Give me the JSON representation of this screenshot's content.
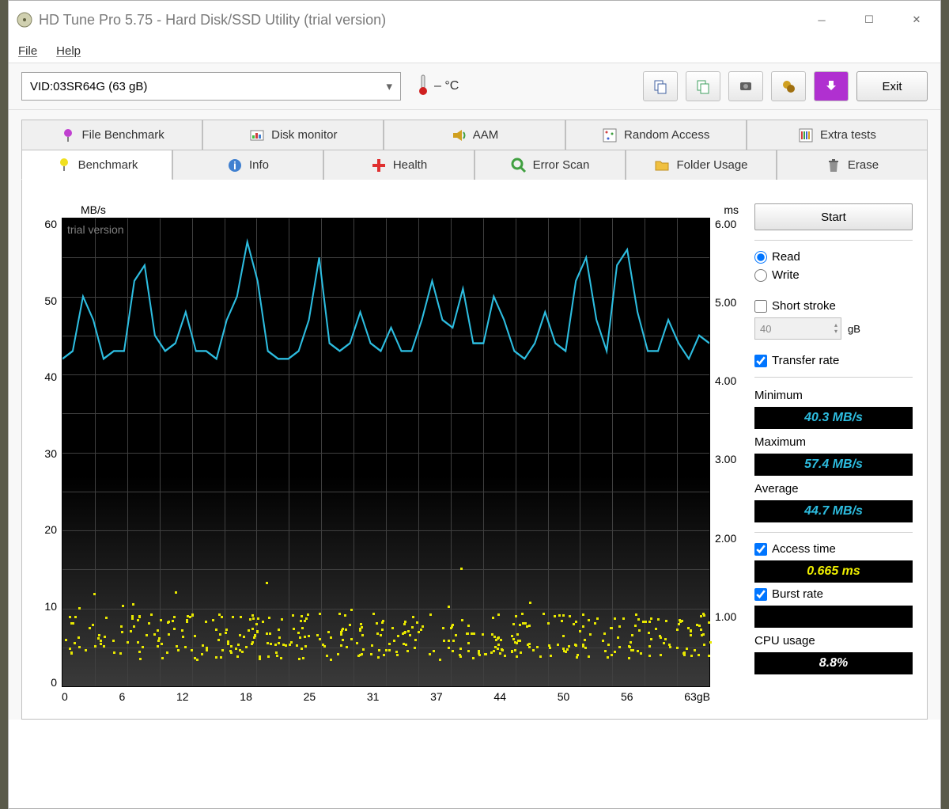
{
  "window": {
    "title": "HD Tune Pro 5.75 - Hard Disk/SSD Utility (trial version)"
  },
  "menu": {
    "file": "File",
    "help": "Help"
  },
  "toolbar": {
    "drive": "VID:03SR64G (63 gB)",
    "temp": "– °C",
    "exit": "Exit"
  },
  "tabs_row1": [
    {
      "label": "File Benchmark"
    },
    {
      "label": "Disk monitor"
    },
    {
      "label": "AAM"
    },
    {
      "label": "Random Access"
    },
    {
      "label": "Extra tests"
    }
  ],
  "tabs_row2": [
    {
      "label": "Benchmark",
      "active": true
    },
    {
      "label": "Info"
    },
    {
      "label": "Health"
    },
    {
      "label": "Error Scan"
    },
    {
      "label": "Folder Usage"
    },
    {
      "label": "Erase"
    }
  ],
  "chart": {
    "watermark": "trial version",
    "y_left_label": "MB/s",
    "y_right_label": "ms",
    "y_left_ticks": [
      "60",
      "50",
      "40",
      "30",
      "20",
      "10",
      "0"
    ],
    "y_right_ticks": [
      "6.00",
      "5.00",
      "4.00",
      "3.00",
      "2.00",
      "1.00",
      ""
    ],
    "x_ticks": [
      "0",
      "6",
      "12",
      "18",
      "25",
      "31",
      "37",
      "44",
      "50",
      "56",
      "63gB"
    ],
    "line_color": "#2dbde0",
    "scatter_color": "#e8e800",
    "bg_top": "#000000",
    "bg_bottom": "#3a3a3a",
    "grid_color": "#404040",
    "y_range": [
      0,
      60
    ],
    "transfer_points": [
      [
        0,
        42
      ],
      [
        1,
        43
      ],
      [
        2,
        50
      ],
      [
        3,
        47
      ],
      [
        4,
        42
      ],
      [
        5,
        43
      ],
      [
        6,
        43
      ],
      [
        7,
        52
      ],
      [
        8,
        54
      ],
      [
        9,
        45
      ],
      [
        10,
        43
      ],
      [
        11,
        44
      ],
      [
        12,
        48
      ],
      [
        13,
        43
      ],
      [
        14,
        43
      ],
      [
        15,
        42
      ],
      [
        16,
        47
      ],
      [
        17,
        50
      ],
      [
        18,
        57
      ],
      [
        19,
        52
      ],
      [
        20,
        43
      ],
      [
        21,
        42
      ],
      [
        22,
        42
      ],
      [
        23,
        43
      ],
      [
        24,
        47
      ],
      [
        25,
        55
      ],
      [
        26,
        44
      ],
      [
        27,
        43
      ],
      [
        28,
        44
      ],
      [
        29,
        48
      ],
      [
        30,
        44
      ],
      [
        31,
        43
      ],
      [
        32,
        46
      ],
      [
        33,
        43
      ],
      [
        34,
        43
      ],
      [
        35,
        47
      ],
      [
        36,
        52
      ],
      [
        37,
        47
      ],
      [
        38,
        46
      ],
      [
        39,
        51
      ],
      [
        40,
        44
      ],
      [
        41,
        44
      ],
      [
        42,
        50
      ],
      [
        43,
        47
      ],
      [
        44,
        43
      ],
      [
        45,
        42
      ],
      [
        46,
        44
      ],
      [
        47,
        48
      ],
      [
        48,
        44
      ],
      [
        49,
        43
      ],
      [
        50,
        52
      ],
      [
        51,
        55
      ],
      [
        52,
        47
      ],
      [
        53,
        43
      ],
      [
        54,
        54
      ],
      [
        55,
        56
      ],
      [
        56,
        48
      ],
      [
        57,
        43
      ],
      [
        58,
        43
      ],
      [
        59,
        47
      ],
      [
        60,
        44
      ],
      [
        61,
        42
      ],
      [
        62,
        45
      ],
      [
        63,
        44
      ]
    ],
    "access_y_range": [
      0,
      6
    ],
    "access_approx_band": [
      0.35,
      0.95
    ]
  },
  "side": {
    "start": "Start",
    "read": "Read",
    "write": "Write",
    "short_stroke": "Short stroke",
    "stroke_val": "40",
    "stroke_unit": "gB",
    "transfer_rate": "Transfer rate",
    "min_label": "Minimum",
    "min_val": "40.3 MB/s",
    "max_label": "Maximum",
    "max_val": "57.4 MB/s",
    "avg_label": "Average",
    "avg_val": "44.7 MB/s",
    "access_label": "Access time",
    "access_val": "0.665 ms",
    "burst_label": "Burst rate",
    "burst_val": "",
    "cpu_label": "CPU usage",
    "cpu_val": "8.8%"
  },
  "colors": {
    "stat_cyan": "#2dbde0",
    "stat_yellow": "#f0f000",
    "stat_white": "#ffffff"
  }
}
